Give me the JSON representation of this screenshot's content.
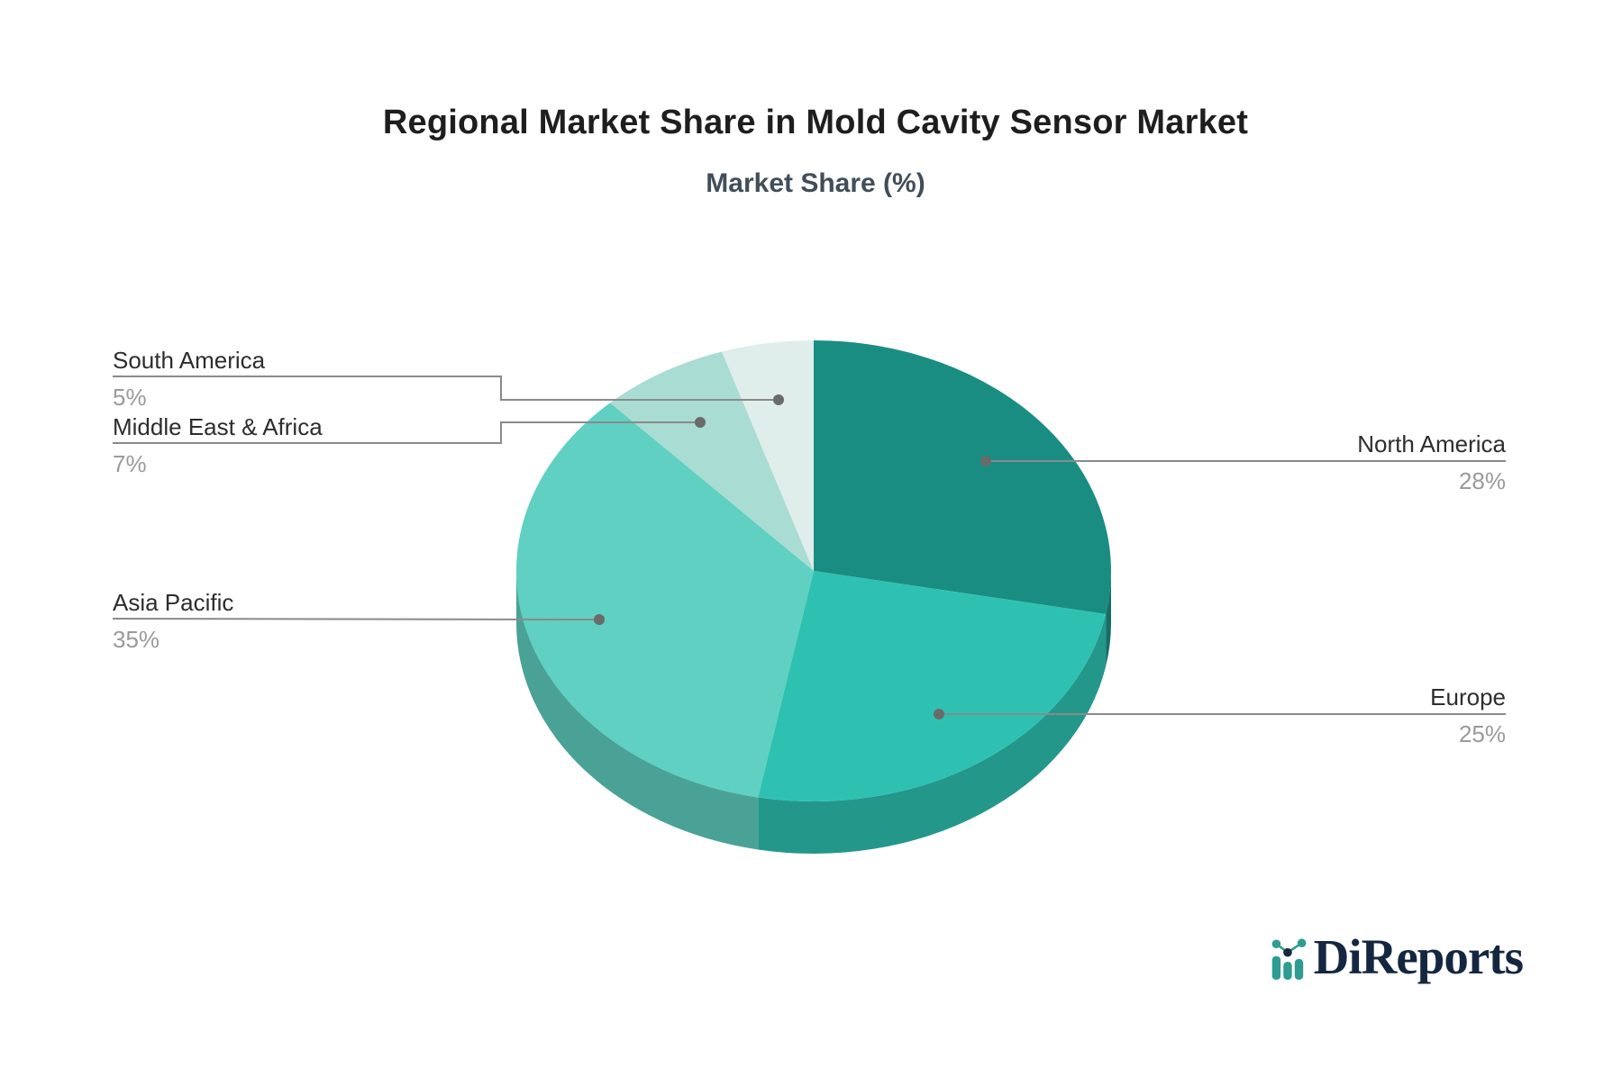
{
  "chart_data": {
    "type": "pie",
    "title": "Regional Market Share in Mold Cavity Sensor Market",
    "subtitle": "Market Share (%)",
    "unit": "%",
    "direction": "clockwise",
    "start_angle_deg": 0,
    "legend": "none",
    "style": "3d-pie",
    "categories": [
      "North America",
      "Europe",
      "Asia Pacific",
      "Middle East & Africa",
      "South America"
    ],
    "values": [
      28,
      25,
      35,
      7,
      5
    ],
    "slices": [
      {
        "name": "North America",
        "value": 28,
        "label": "28%",
        "color": "#1A8D83",
        "label_side": "right"
      },
      {
        "name": "Europe",
        "value": 25,
        "label": "25%",
        "color": "#2EC1B2",
        "label_side": "right"
      },
      {
        "name": "Asia Pacific",
        "value": 35,
        "label": "35%",
        "color": "#5FD0C2",
        "label_side": "left"
      },
      {
        "name": "Middle East & Africa",
        "value": 7,
        "label": "7%",
        "color": "#A9DCD3",
        "label_side": "left"
      },
      {
        "name": "South America",
        "value": 5,
        "label": "5%",
        "color": "#DFEEEA",
        "label_side": "left"
      }
    ],
    "connector_color": "#8a8a8a",
    "connector_dot_color": "#6a6a6a",
    "label_name_color": "#2d2d2d",
    "label_value_color": "#9a9a9a"
  },
  "brand": {
    "name": "DiReports"
  }
}
